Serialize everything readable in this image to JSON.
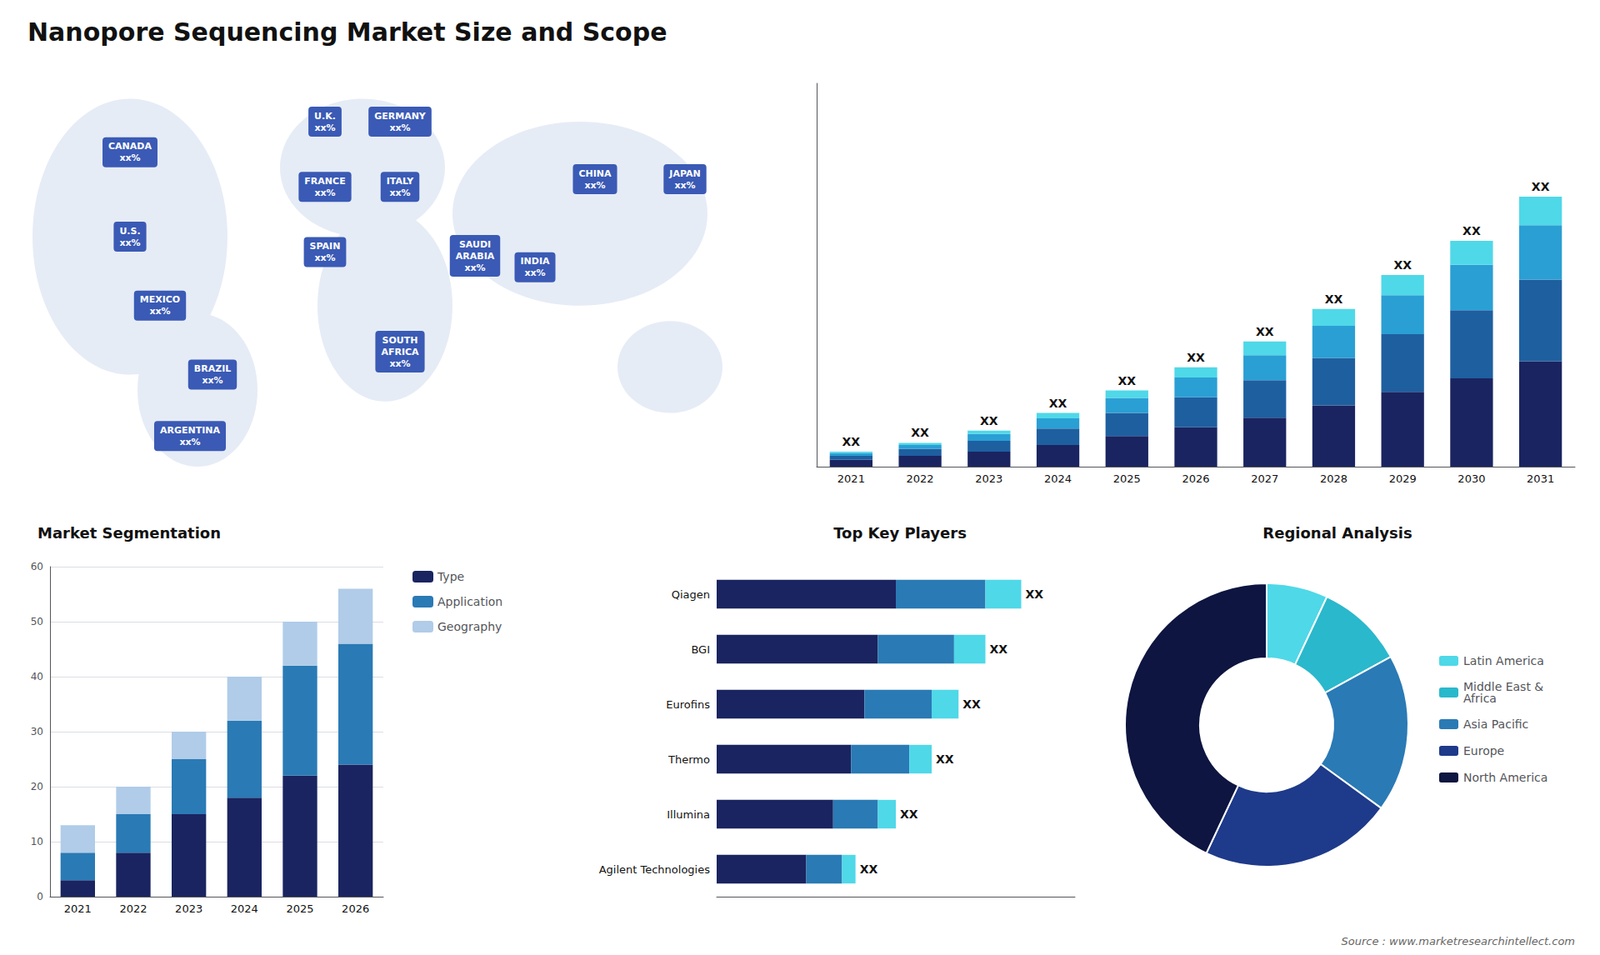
{
  "title": "Nanopore Sequencing Market Size and Scope",
  "annotations": [
    "Source : www.marketresearchintellect.com"
  ],
  "chart_data": [
    {
      "type": "map",
      "annotations": [
        "U.S.\nxx%",
        "CANADA\nxx%",
        "MEXICO\nxx%",
        "BRAZIL\nxx%",
        "ARGENTINA\nxx%",
        "U.K.\nxx%",
        "FRANCE\nxx%",
        "SPAIN\nxx%",
        "GERMANY\nxx%",
        "ITALY\nxx%",
        "SAUDI\nARABIA\nxx%",
        "SOUTH\nAFRICA\nxx%",
        "CHINA\nxx%",
        "INDIA\nxx%",
        "JAPAN\nxx%"
      ]
    },
    {
      "type": "bar",
      "stacked": true,
      "categories": [
        "2021",
        "2022",
        "2023",
        "2024",
        "2025",
        "2026",
        "2027",
        "2028",
        "2029",
        "2030",
        "2031"
      ],
      "series": [
        {
          "color": "#1a2460",
          "values": [
            1.0,
            1.6,
            2.2,
            3.2,
            4.5,
            5.8,
            7.2,
            9.0,
            11.0,
            13.0,
            15.5
          ]
        },
        {
          "color": "#1e5fa0",
          "values": [
            0.6,
            1.0,
            1.6,
            2.4,
            3.4,
            4.4,
            5.5,
            7.0,
            8.5,
            10.0,
            12.0
          ]
        },
        {
          "color": "#2a9fd4",
          "values": [
            0.4,
            0.6,
            1.0,
            1.5,
            2.2,
            2.9,
            3.7,
            4.7,
            5.7,
            6.7,
            8.0
          ]
        },
        {
          "color": "#4fd8e8",
          "values": [
            0.2,
            0.3,
            0.5,
            0.8,
            1.1,
            1.5,
            2.0,
            2.5,
            3.0,
            3.5,
            4.2
          ]
        }
      ],
      "annotations": [
        "XX",
        "XX",
        "XX",
        "XX",
        "XX",
        "XX",
        "XX",
        "XX",
        "XX",
        "XX",
        "XX"
      ],
      "ylim": [
        0,
        56.374
      ],
      "tick_labels": "x",
      "grid": false
    },
    {
      "type": "bar",
      "title": "Market Segmentation",
      "stacked": true,
      "categories": [
        "2021",
        "2022",
        "2023",
        "2024",
        "2025",
        "2026"
      ],
      "series": [
        {
          "name": "Type",
          "color": "#1a2460",
          "values": [
            3,
            8,
            15,
            18,
            22,
            24
          ]
        },
        {
          "name": "Application",
          "color": "#2a7ab5",
          "values": [
            5,
            7,
            10,
            14,
            20,
            22
          ]
        },
        {
          "name": "Geography",
          "color": "#b0cce8",
          "values": [
            5,
            5,
            5,
            8,
            8,
            10
          ]
        }
      ],
      "ylim": [
        0,
        60
      ],
      "yticks": [
        0,
        10,
        20,
        30,
        40,
        50,
        60
      ],
      "grid": true,
      "legend": "right"
    },
    {
      "type": "bar",
      "title": "Top Key Players",
      "orientation": "horizontal",
      "stacked": true,
      "categories": [
        "Qiagen",
        "BGI",
        "Eurofins",
        "Thermo",
        "Illumina",
        "Agilent Technologies"
      ],
      "series": [
        {
          "color": "#1a2460",
          "values": [
            0.4,
            0.36,
            0.33,
            0.3,
            0.26,
            0.2
          ]
        },
        {
          "color": "#2a7ab5",
          "values": [
            0.2,
            0.17,
            0.15,
            0.13,
            0.1,
            0.08
          ]
        },
        {
          "color": "#4fd8e8",
          "values": [
            0.08,
            0.07,
            0.06,
            0.05,
            0.04,
            0.03
          ]
        }
      ],
      "annotations": [
        "XX",
        "XX",
        "XX",
        "XX",
        "XX",
        "XX"
      ],
      "xlim": [
        0,
        0.8
      ],
      "tick_labels": "y",
      "grid": false
    },
    {
      "type": "pie",
      "title": "Regional Analysis",
      "categories": [
        "Latin America",
        "Middle East &\nAfrica",
        "Asia Pacific",
        "Europe",
        "North America"
      ],
      "values": [
        7,
        10,
        18,
        22,
        43
      ],
      "colors": [
        "#4fd8e8",
        "#2ab8cc",
        "#2a7ab5",
        "#1e3a8a",
        "#0d1540"
      ],
      "legend": "right"
    }
  ]
}
